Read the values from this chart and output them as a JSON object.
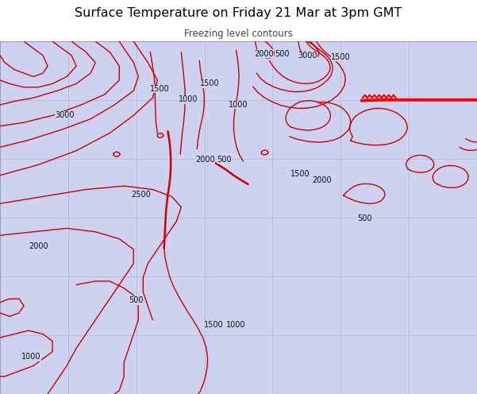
{
  "title": "Surface Temperature on Friday 21 Mar at 3pm GMT",
  "subtitle": "Freezing level contours",
  "map_bg": "#ccd2ef",
  "grid_color": "#b5bde0",
  "contour_color": "#cc0000",
  "label_color": "#111111",
  "header_bg": "#ffffff",
  "title_fontsize": 11.5,
  "subtitle_fontsize": 8.5,
  "figsize": [
    6.01,
    4.96
  ],
  "dpi": 100
}
